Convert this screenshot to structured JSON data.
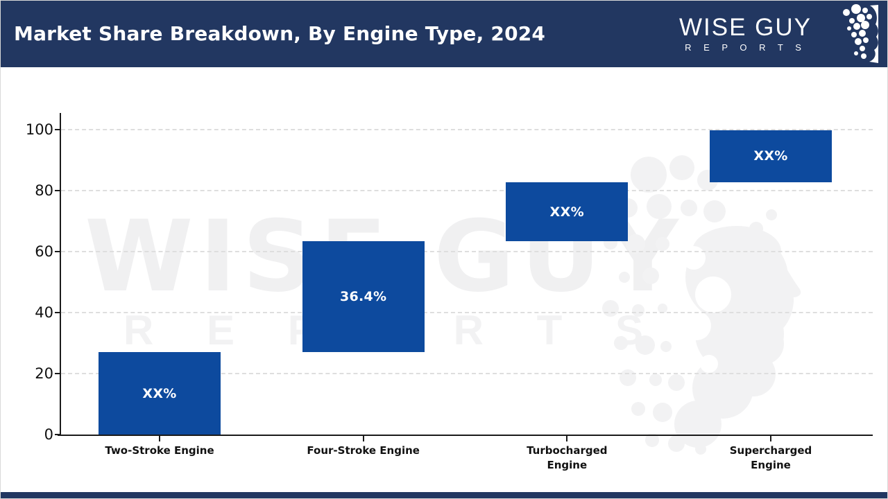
{
  "header": {
    "title": "Market Share Breakdown, By Engine Type, 2024",
    "logo_line1": "WISE GUY",
    "logo_line2": "R E P O R T S"
  },
  "watermark": {
    "line1": "WISE GUY",
    "line2": "R E P O R T S"
  },
  "colors": {
    "header_bg": "#223761",
    "footer_bg": "#223761",
    "bar": "#0d4a9e",
    "bar_label": "#ffffff",
    "grid": "#dedede",
    "axis": "#1a1a1a",
    "watermark": "#f2f2f3"
  },
  "chart_data": {
    "type": "bar",
    "subtype": "floating-segment-waterfall",
    "title": "Market Share Breakdown, By Engine Type, 2024",
    "xlabel": "",
    "ylabel": "",
    "ylim": [
      0,
      105
    ],
    "yticks": [
      0,
      20,
      40,
      60,
      80,
      100
    ],
    "grid": "horizontal-dashed",
    "legend": "none",
    "categories": [
      "Two-Stroke Engine",
      "Four-Stroke Engine",
      "Turbocharged Engine",
      "Supercharged Engine"
    ],
    "bars": [
      {
        "category": "Two-Stroke Engine",
        "category_lines": [
          "Two-Stroke Engine"
        ],
        "start": 0,
        "end": 27,
        "label": "XX%"
      },
      {
        "category": "Four-Stroke Engine",
        "category_lines": [
          "Four-Stroke Engine"
        ],
        "start": 27,
        "end": 63.4,
        "label": "36.4%"
      },
      {
        "category": "Turbocharged Engine",
        "category_lines": [
          "Turbocharged",
          "Engine"
        ],
        "start": 63.4,
        "end": 82.7,
        "label": "XX%"
      },
      {
        "category": "Supercharged Engine",
        "category_lines": [
          "Supercharged",
          "Engine"
        ],
        "start": 82.7,
        "end": 99.8,
        "label": "XX%"
      }
    ]
  }
}
